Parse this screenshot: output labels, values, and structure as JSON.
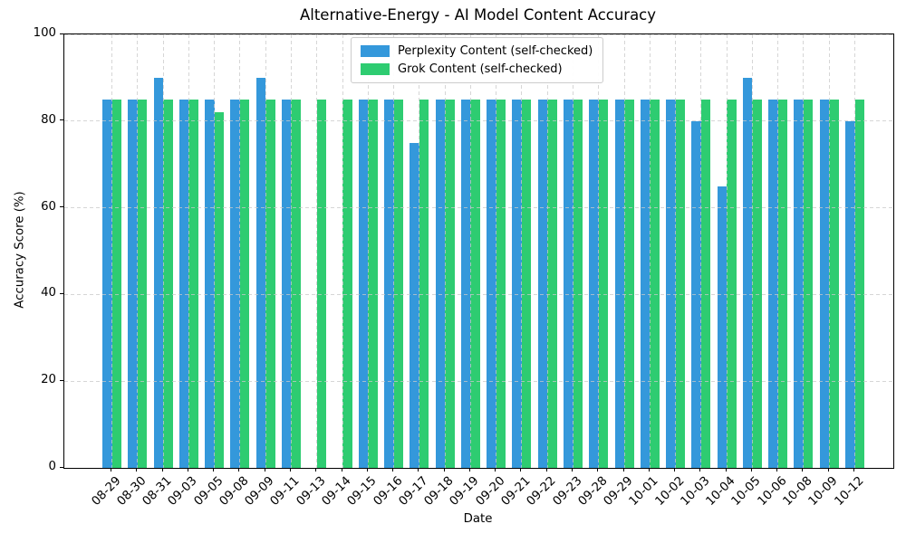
{
  "chart_data": {
    "type": "bar",
    "title": "Alternative-Energy - AI Model Content Accuracy",
    "xlabel": "Date",
    "ylabel": "Accuracy Score (%)",
    "ylim": [
      0,
      100
    ],
    "yticks": [
      0,
      20,
      40,
      60,
      80,
      100
    ],
    "grid": true,
    "grid_style": "dashed",
    "legend_position": "upper center",
    "categories": [
      "08-29",
      "08-30",
      "08-31",
      "09-03",
      "09-05",
      "09-08",
      "09-09",
      "09-11",
      "09-13",
      "09-14",
      "09-15",
      "09-16",
      "09-17",
      "09-18",
      "09-19",
      "09-20",
      "09-21",
      "09-22",
      "09-23",
      "09-28",
      "09-29",
      "10-01",
      "10-02",
      "10-03",
      "10-04",
      "10-05",
      "10-06",
      "10-08",
      "10-09",
      "10-12"
    ],
    "series": [
      {
        "name": "Perplexity Content (self-checked)",
        "color": "#3498db",
        "values": [
          85,
          85,
          90,
          85,
          85,
          85,
          90,
          85,
          0,
          0,
          85,
          85,
          75,
          85,
          85,
          85,
          85,
          85,
          85,
          85,
          85,
          85,
          85,
          80,
          65,
          90,
          85,
          85,
          85,
          80
        ]
      },
      {
        "name": "Grok Content (self-checked)",
        "color": "#2ecc71",
        "values": [
          85,
          85,
          85,
          85,
          82,
          85,
          85,
          85,
          85,
          85,
          85,
          85,
          85,
          85,
          85,
          85,
          85,
          85,
          85,
          85,
          85,
          85,
          85,
          85,
          85,
          85,
          85,
          85,
          85,
          85
        ]
      }
    ]
  }
}
